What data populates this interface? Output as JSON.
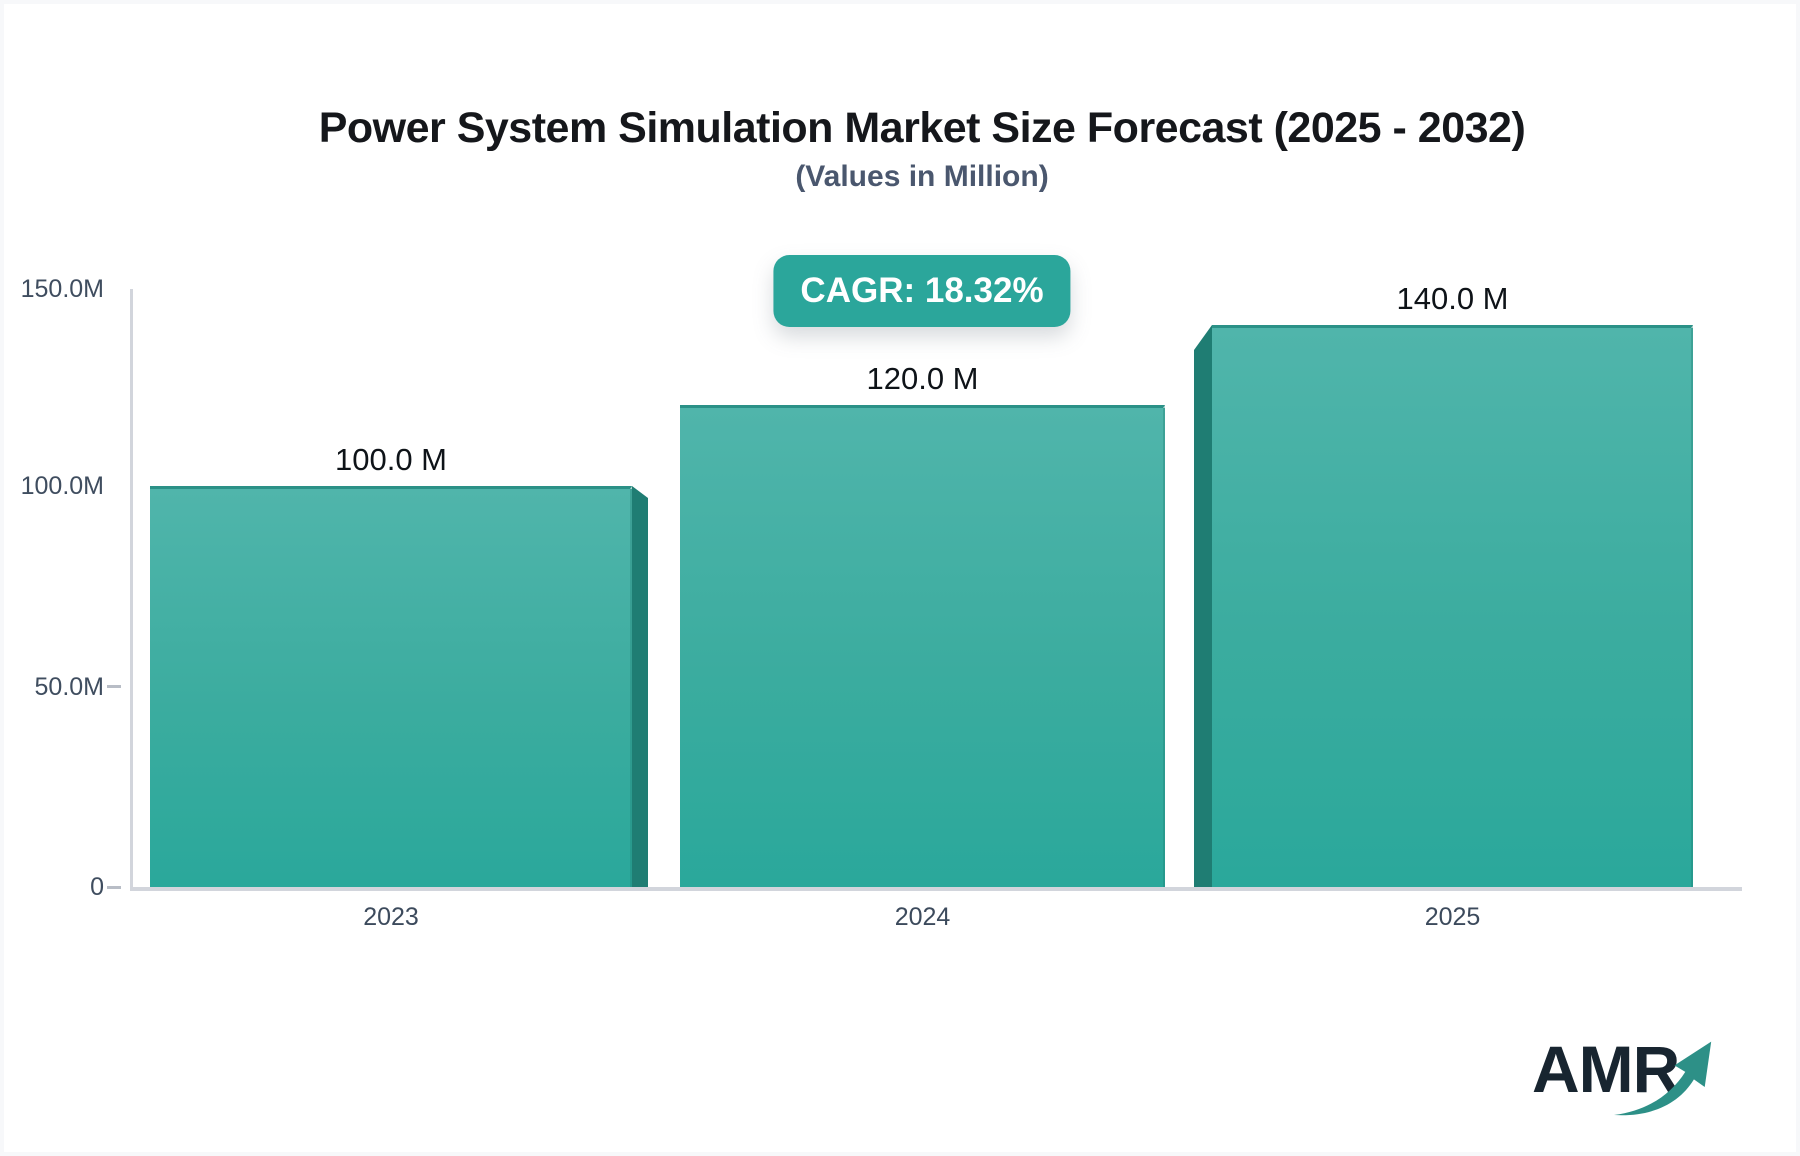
{
  "chart_data": {
    "type": "bar",
    "title": "Power System Simulation Market Size Forecast (2025 - 2032)",
    "subtitle": "(Values in Million)",
    "badge": "CAGR: 18.32%",
    "categories": [
      "2023",
      "2024",
      "2025"
    ],
    "values": [
      100.0,
      120.0,
      140.0
    ],
    "value_labels": [
      "100.0 M",
      "120.0 M",
      "140.0 M"
    ],
    "unit": "Million",
    "xlabel": "",
    "ylabel": "",
    "ylim": [
      0,
      150
    ],
    "y_tick_labels": [
      "150.0M",
      "100.0M",
      "50.0M",
      "0"
    ],
    "y_tick_values": [
      150,
      100,
      50,
      0
    ],
    "grid": false,
    "legend": "none",
    "bar_style": "3d-teal-gradient",
    "colors": {
      "bar_gradient_top": "#50b5ab",
      "bar_gradient_bottom": "#2aa89b",
      "bar_side_face": "#1f7d73",
      "badge_background": "#2ba69b",
      "badge_text": "#ffffff",
      "axis": "#d2d5dc",
      "title_text": "#15171b",
      "subtitle_text": "#4a576e"
    }
  },
  "branding": {
    "logo_text": "AMR",
    "logo_arrow_color": "#2d9087"
  }
}
